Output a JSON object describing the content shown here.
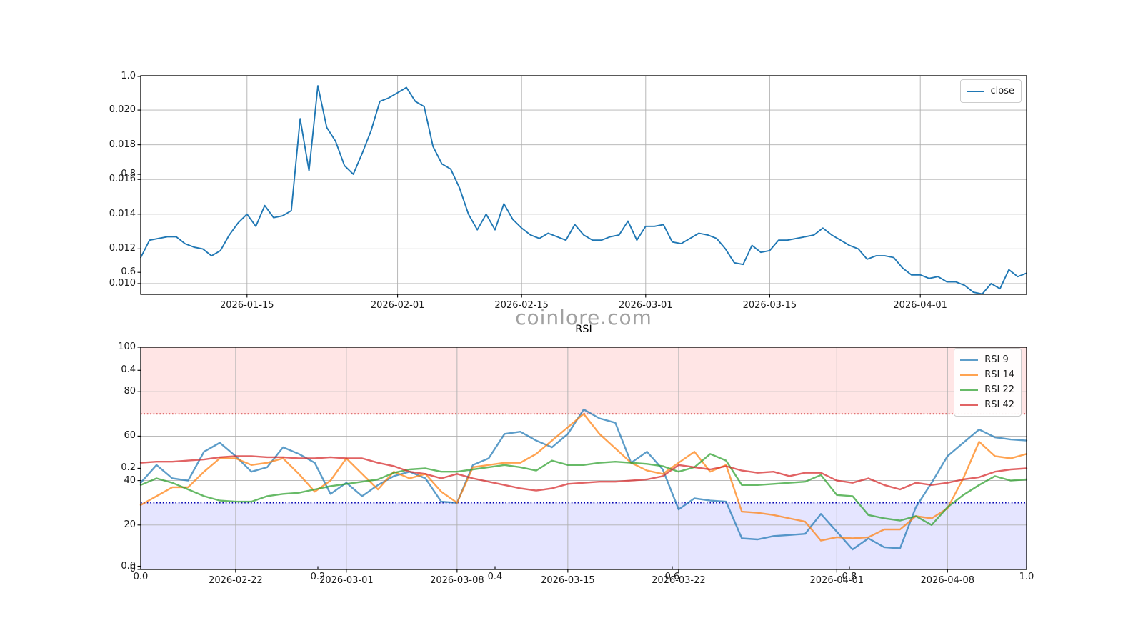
{
  "watermark": "coinlore.com",
  "overlay_axis": {
    "y_ticks": [
      "1.0",
      "0.8",
      "0.6",
      "0.4",
      "0.2",
      "0.0"
    ],
    "x_ticks": [
      "0.0",
      "0.2",
      "0.4",
      "0.6",
      "0.8",
      "1.0"
    ]
  },
  "colors": {
    "close": "#1f77b4",
    "rsi9": "#1f77b4",
    "rsi14": "#ff7f0e",
    "rsi22": "#2ca02c",
    "rsi42": "#d62728",
    "grid": "#b0b0b0",
    "axes_border": "#000000",
    "overbought_band": "rgba(255,0,0,0.10)",
    "oversold_band": "rgba(0,0,255,0.10)",
    "overbought_line": "#c00000",
    "oversold_line": "#0000b0",
    "tick_text": "#1a1a1a"
  },
  "chart_data": [
    {
      "id": "price",
      "type": "line",
      "title": "",
      "start_date": "2026-01-03",
      "frequency": "daily",
      "grid": true,
      "ylim": [
        0.00938,
        0.02198
      ],
      "y_ticks": [
        {
          "label": "0.010",
          "v": 0.01
        },
        {
          "label": "0.012",
          "v": 0.012
        },
        {
          "label": "0.014",
          "v": 0.014
        },
        {
          "label": "0.016",
          "v": 0.016
        },
        {
          "label": "0.018",
          "v": 0.018
        },
        {
          "label": "0.020",
          "v": 0.02
        }
      ],
      "x_ticks": [
        {
          "label": "2026-01-15",
          "i": 12
        },
        {
          "label": "2026-02-01",
          "i": 29
        },
        {
          "label": "2026-02-15",
          "i": 43
        },
        {
          "label": "2026-03-01",
          "i": 57
        },
        {
          "label": "2026-03-15",
          "i": 71
        },
        {
          "label": "2026-04-01",
          "i": 88
        }
      ],
      "legend": {
        "position": "upper right",
        "entries": [
          "close"
        ]
      },
      "series": [
        {
          "name": "close",
          "color": "#1f77b4",
          "opacity": 1.0,
          "width": 1.9,
          "values": [
            0.0115,
            0.0125,
            0.0126,
            0.0127,
            0.0127,
            0.0123,
            0.0121,
            0.012,
            0.0116,
            0.0119,
            0.0128,
            0.0135,
            0.014,
            0.0133,
            0.0145,
            0.0138,
            0.0139,
            0.0142,
            0.0195,
            0.0165,
            0.0214,
            0.019,
            0.0182,
            0.0168,
            0.0163,
            0.0175,
            0.0188,
            0.0205,
            0.0207,
            0.021,
            0.0213,
            0.0205,
            0.0202,
            0.0179,
            0.0169,
            0.0166,
            0.0155,
            0.014,
            0.0131,
            0.014,
            0.0131,
            0.0146,
            0.0137,
            0.0132,
            0.0128,
            0.0126,
            0.0129,
            0.0127,
            0.0125,
            0.0134,
            0.0128,
            0.0125,
            0.0125,
            0.0127,
            0.0128,
            0.0136,
            0.0125,
            0.0133,
            0.0133,
            0.0134,
            0.0124,
            0.0123,
            0.0126,
            0.0129,
            0.0128,
            0.0126,
            0.012,
            0.0112,
            0.0111,
            0.0122,
            0.0118,
            0.0119,
            0.0125,
            0.0125,
            0.0126,
            0.0127,
            0.0128,
            0.0132,
            0.0128,
            0.0125,
            0.0122,
            0.012,
            0.0114,
            0.0116,
            0.0116,
            0.0115,
            0.0109,
            0.0105,
            0.0105,
            0.0103,
            0.0104,
            0.0101,
            0.0101,
            0.0099,
            0.0095,
            0.0094,
            0.01,
            0.0097,
            0.0108,
            0.0104,
            0.0106
          ]
        }
      ]
    },
    {
      "id": "rsi",
      "type": "line",
      "title": "RSI",
      "start_date": "2026-02-16",
      "frequency": "daily",
      "grid": true,
      "ylim": [
        0,
        100
      ],
      "y_ticks": [
        {
          "label": "0",
          "v": 0
        },
        {
          "label": "20",
          "v": 20
        },
        {
          "label": "40",
          "v": 40
        },
        {
          "label": "60",
          "v": 60
        },
        {
          "label": "80",
          "v": 80
        },
        {
          "label": "100",
          "v": 100
        }
      ],
      "x_ticks": [
        {
          "label": "2026-02-22",
          "i": 6
        },
        {
          "label": "2026-03-01",
          "i": 13
        },
        {
          "label": "2026-03-08",
          "i": 20
        },
        {
          "label": "2026-03-15",
          "i": 27
        },
        {
          "label": "2026-03-22",
          "i": 34
        },
        {
          "label": "2026-04-01",
          "i": 44
        },
        {
          "label": "2026-04-08",
          "i": 51
        }
      ],
      "bands": [
        {
          "name": "overbought",
          "from": 70,
          "to": 100,
          "color": "rgba(255,0,0,0.10)"
        },
        {
          "name": "oversold",
          "from": 0,
          "to": 30,
          "color": "rgba(0,0,255,0.10)"
        }
      ],
      "hlines": [
        {
          "name": "overbought-threshold",
          "y": 70,
          "color": "#c00000",
          "style": "dotted"
        },
        {
          "name": "oversold-threshold",
          "y": 30,
          "color": "#0000b0",
          "style": "dotted"
        }
      ],
      "legend": {
        "position": "upper right",
        "entries": [
          "RSI 9",
          "RSI 14",
          "RSI 22",
          "RSI 42"
        ]
      },
      "series": [
        {
          "name": "RSI 9",
          "color": "#1f77b4",
          "opacity": 0.72,
          "width": 2.4,
          "values": [
            39,
            47,
            41,
            40,
            53,
            57,
            51,
            44,
            46,
            55,
            52,
            48,
            34,
            39,
            33,
            38,
            42,
            44,
            41,
            30.5,
            30,
            47,
            50,
            61,
            62,
            58,
            55,
            61,
            72,
            68,
            66,
            48,
            53,
            45,
            27,
            32,
            31,
            30.5,
            14,
            13.5,
            15,
            15.5,
            16,
            25,
            17,
            9,
            14,
            10,
            9.5,
            28,
            39,
            51,
            57,
            63,
            59.5,
            58.5,
            58
          ]
        },
        {
          "name": "RSI 14",
          "color": "#ff7f0e",
          "opacity": 0.72,
          "width": 2.4,
          "values": [
            29,
            33,
            37,
            37,
            44,
            50,
            50,
            47,
            48,
            50,
            43,
            35,
            40,
            50,
            43,
            36,
            44,
            41,
            43,
            35,
            30,
            46,
            47,
            48,
            48,
            52,
            58,
            64,
            70,
            61,
            54.5,
            48,
            44.5,
            43,
            48,
            53,
            44,
            47,
            26,
            25.5,
            24.5,
            23,
            21.5,
            13,
            14.5,
            14,
            14.5,
            18,
            18,
            24,
            23,
            27.5,
            41,
            57.5,
            51,
            50,
            52
          ]
        },
        {
          "name": "RSI 22",
          "color": "#2ca02c",
          "opacity": 0.72,
          "width": 2.4,
          "values": [
            38,
            41,
            39,
            36,
            33,
            31,
            30.5,
            30.5,
            33,
            34,
            34.5,
            36,
            37.5,
            38.5,
            39.5,
            40.5,
            43.5,
            45,
            45.5,
            44,
            44,
            45,
            46,
            47,
            46,
            44.5,
            49,
            47,
            47,
            48,
            48.5,
            48,
            47.5,
            46.5,
            44,
            46,
            52,
            49,
            38,
            38,
            38.5,
            39,
            39.5,
            42.5,
            33.5,
            33,
            24.5,
            23,
            22,
            24,
            20,
            28,
            33.5,
            38,
            42,
            40,
            40.5
          ]
        },
        {
          "name": "RSI 42",
          "color": "#d62728",
          "opacity": 0.72,
          "width": 2.4,
          "values": [
            48,
            48.5,
            48.5,
            49,
            49.5,
            50.5,
            51,
            51,
            50.5,
            50.5,
            50,
            50,
            50.5,
            50,
            50,
            48,
            46.5,
            44,
            43,
            41,
            43,
            41,
            39.5,
            38,
            36.5,
            35.5,
            36.5,
            38.5,
            39,
            39.5,
            39.5,
            40,
            40.5,
            42,
            47,
            46,
            45,
            46.5,
            44.5,
            43.5,
            44,
            42,
            43.5,
            43.5,
            40,
            39,
            41,
            38,
            36,
            39,
            38,
            39,
            40.5,
            41.5,
            44,
            45,
            45.5
          ]
        }
      ]
    }
  ]
}
